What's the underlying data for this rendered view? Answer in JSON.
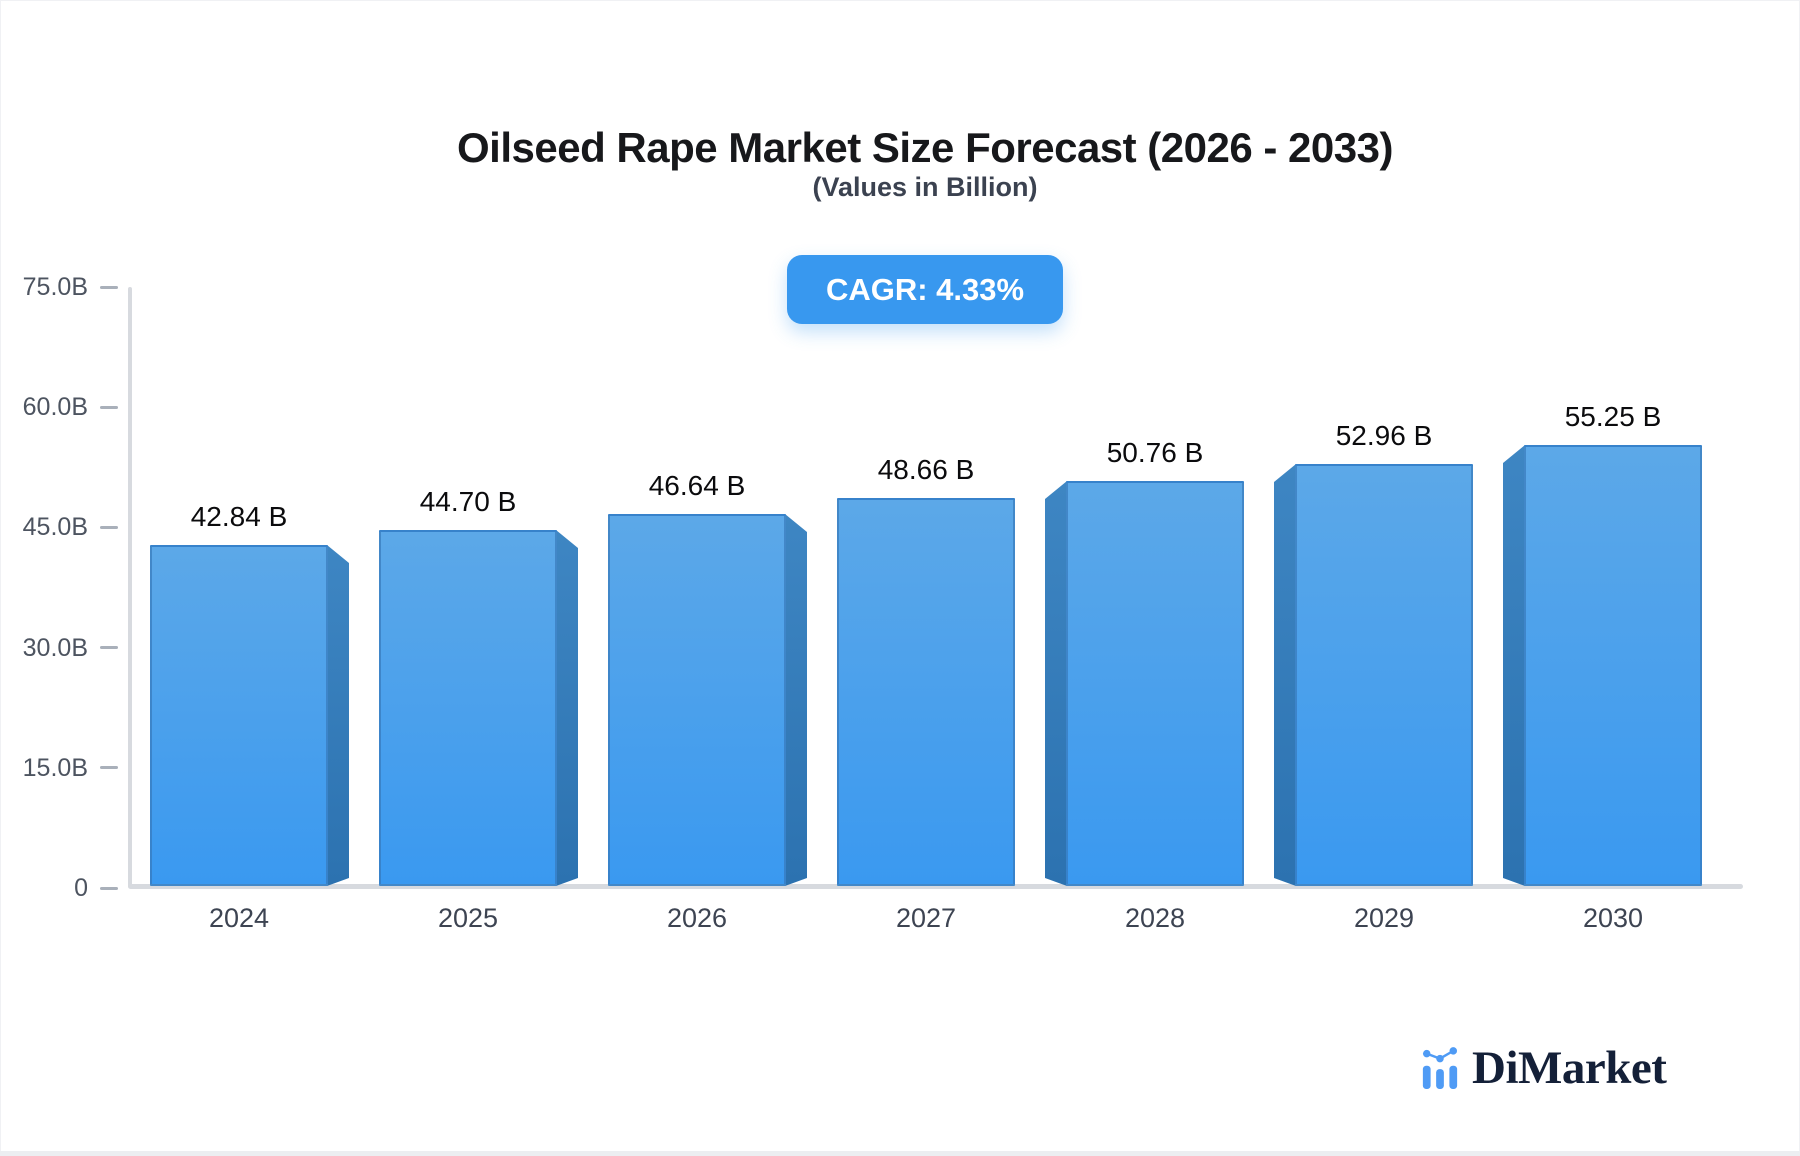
{
  "header": {
    "title": "Oilseed Rape Market Size Forecast (2026 - 2033)",
    "subtitle": "(Values in Billion)",
    "cagr_badge": "CAGR: 4.33%"
  },
  "chart_data": {
    "type": "bar",
    "title": "Oilseed Rape Market Size Forecast (2026 - 2033)",
    "subtitle": "(Values in Billion)",
    "annotation": "CAGR: 4.33%",
    "categories": [
      "2024",
      "2025",
      "2026",
      "2027",
      "2028",
      "2029",
      "2030"
    ],
    "values": [
      42.84,
      44.7,
      46.64,
      48.66,
      50.76,
      52.96,
      55.25
    ],
    "value_labels": [
      "42.84 B",
      "44.70 B",
      "46.64 B",
      "48.66 B",
      "50.76 B",
      "52.96 B",
      "55.25 B"
    ],
    "unit": "Billion",
    "xlabel": "",
    "ylabel": "",
    "ylim": [
      0,
      75
    ],
    "y_ticks": [
      75,
      60,
      45,
      30,
      15,
      0
    ],
    "y_tick_labels": [
      "75.0B",
      "60.0B",
      "45.0B",
      "30.0B",
      "15.0B",
      "0"
    ],
    "grid": false,
    "legend": false,
    "bar_style": "3d-perspective",
    "colors": {
      "bar_top": "#5CA8E8",
      "bar_bottom": "#3A99F0",
      "bar_border": "#3576B7",
      "bar_side_top": "#3E86C3",
      "bar_side_bottom": "#2C72B0",
      "axis": "#D7DADF",
      "tick": "#A9B0BA",
      "badge_bg": "#3898EF",
      "badge_text": "#FFFFFF"
    }
  },
  "footer": {
    "logo_text": "DiMarket",
    "logo_color": "#142038",
    "logo_icon_color": "#4F9BF5"
  }
}
